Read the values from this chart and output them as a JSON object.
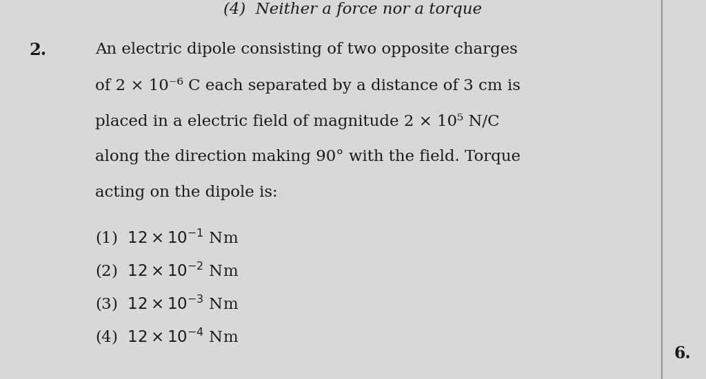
{
  "background_color": "#d8d8d8",
  "top_text_left": "(4)",
  "top_text_right": "Neither a force nor a torque",
  "question_number": "2.",
  "question_text_lines": [
    "An electric dipole consisting of two opposite charges",
    "of 2 × 10⁻⁶ C each separated by a distance of 3 cm is",
    "placed in a electric field of magnitude 2 × 10⁵ N/C",
    "along the direction making 90° with the field. Torque",
    "acting on the dipole is:"
  ],
  "options_plain": [
    "(1)  12 × 10",
    "(2)  12 × 10",
    "(3)  12 × 10",
    "(4)  12 × 10"
  ],
  "options_exponents": [
    "-1",
    "-2",
    "-3",
    "-4"
  ],
  "options_suffix": " Nm",
  "side_number": "6.",
  "text_color": "#1a1a1a",
  "top_text_color": "#1a1a1a",
  "font_size_body": 16.5,
  "font_size_top": 16.5,
  "font_size_side": 17,
  "right_border_color": "#888888"
}
